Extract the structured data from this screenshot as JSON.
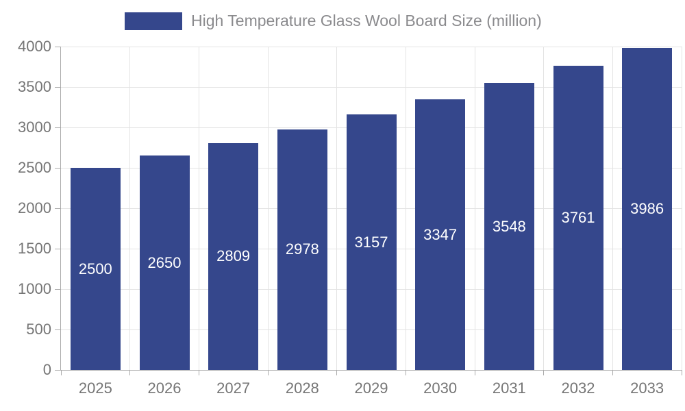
{
  "legend": {
    "label": "High Temperature Glass Wool Board Size (million)"
  },
  "chart_data": {
    "type": "bar",
    "title": "High Temperature Glass Wool Board Size (million)",
    "categories": [
      "2025",
      "2026",
      "2027",
      "2028",
      "2029",
      "2030",
      "2031",
      "2032",
      "2033"
    ],
    "values": [
      2500,
      2650,
      2809,
      2978,
      3157,
      3347,
      3548,
      3761,
      3986
    ],
    "xlabel": "",
    "ylabel": "",
    "ylim": [
      0,
      4000
    ],
    "ytick_step": 500,
    "yticks": [
      0,
      500,
      1000,
      1500,
      2000,
      2500,
      3000,
      3500,
      4000
    ],
    "grid": true,
    "legend_position": "top",
    "bar_labels_inside": true,
    "colors": {
      "bar": "#35478C",
      "bar_label": "#ffffff",
      "axis_label": "#757575",
      "legend_text": "#8a8a8d",
      "gridline": "#e3e3e3",
      "axis_line": "#aaaaaa",
      "background": "#ffffff"
    }
  }
}
